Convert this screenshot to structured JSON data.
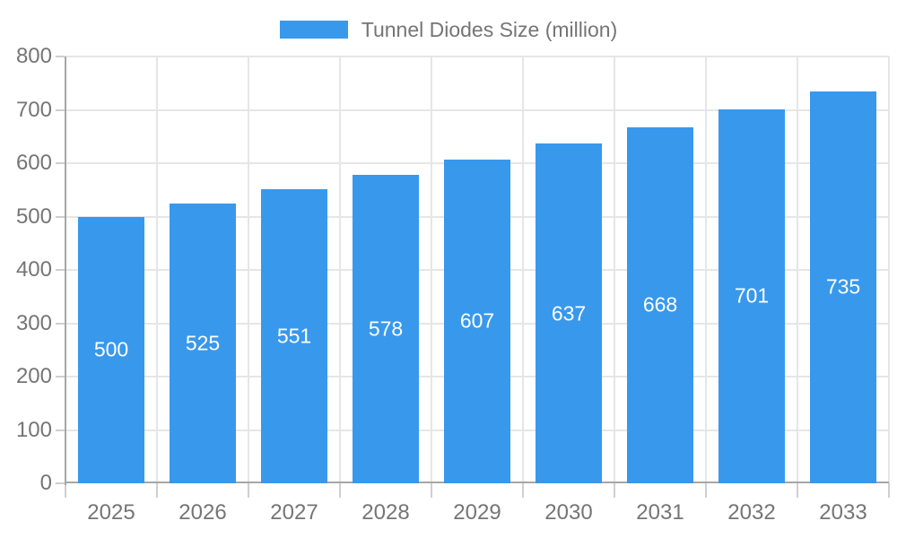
{
  "legend": {
    "label": "Tunnel Diodes Size (million)"
  },
  "chart_data": {
    "type": "bar",
    "title": "Tunnel Diodes Size (million)",
    "categories": [
      "2025",
      "2026",
      "2027",
      "2028",
      "2029",
      "2030",
      "2031",
      "2032",
      "2033"
    ],
    "values": [
      500,
      525,
      551,
      578,
      607,
      637,
      668,
      701,
      735
    ],
    "xlabel": "",
    "ylabel": "",
    "ylim": [
      0,
      800
    ],
    "ytick_step": 100,
    "ytick_labels": [
      "0",
      "100",
      "200",
      "300",
      "400",
      "500",
      "600",
      "700",
      "800"
    ],
    "grid": true,
    "legend_position": "top",
    "bar_label_position": "inside-center"
  },
  "colors": {
    "bar": "#3898EC",
    "bar_label": "#FFFFFF",
    "axis_line": "#A6A6A6",
    "grid_line": "#E6E6E6",
    "tick_line": "#CFCFCF",
    "text": "#757575",
    "background": "#FFFFFF"
  }
}
